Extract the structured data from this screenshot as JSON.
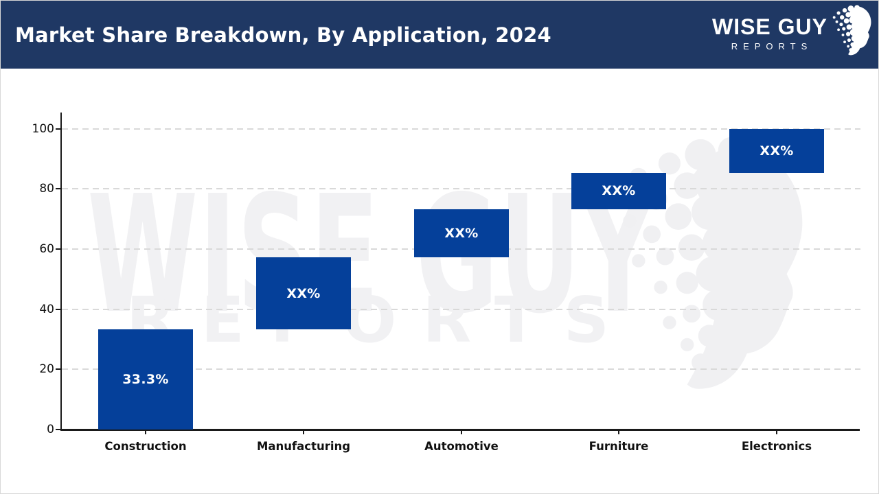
{
  "header": {
    "title": "Market Share Breakdown, By Application, 2024",
    "bg_color": "#1f3864",
    "logo": {
      "line1": "WISE GUY",
      "line2": "REPORTS"
    }
  },
  "watermark": {
    "line1": "WISE GUY",
    "line2": "REPORTS"
  },
  "chart_data": {
    "type": "bar",
    "subtype": "waterfall-floating-segments",
    "title": "Market Share Breakdown, By Application, 2024",
    "xlabel": "",
    "ylabel": "",
    "categories": [
      "Construction",
      "Manufacturing",
      "Automotive",
      "Furniture",
      "Electronics"
    ],
    "segments": [
      {
        "category": "Construction",
        "start": 0,
        "end": 33.3,
        "label": "33.3%"
      },
      {
        "category": "Manufacturing",
        "start": 33.3,
        "end": 57.2,
        "label": "XX%"
      },
      {
        "category": "Automotive",
        "start": 57.2,
        "end": 73.2,
        "label": "XX%"
      },
      {
        "category": "Furniture",
        "start": 73.2,
        "end": 85.3,
        "label": "XX%"
      },
      {
        "category": "Electronics",
        "start": 85.3,
        "end": 100,
        "label": "XX%"
      }
    ],
    "yticks": [
      0,
      20,
      40,
      60,
      80,
      100
    ],
    "ylim": [
      0,
      105
    ],
    "bar_color": "#05409a",
    "grid": "horizontal-dashed",
    "legend": "none"
  }
}
